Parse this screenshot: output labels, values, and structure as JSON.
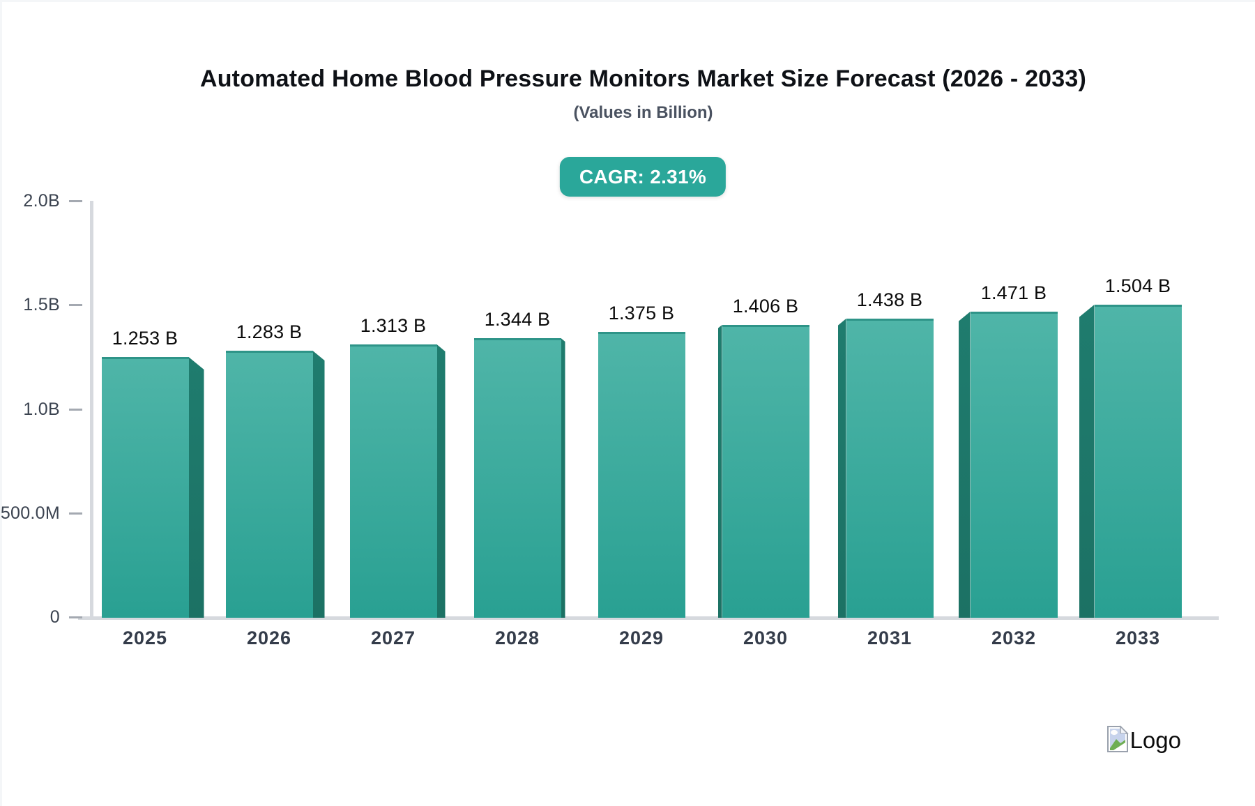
{
  "page": {
    "edge_color": "#f4f6f8",
    "background": "#ffffff"
  },
  "header": {
    "title": "Automated Home Blood Pressure Monitors Market Size Forecast (2026 - 2033)",
    "subtitle": "(Values in Billion)"
  },
  "badge": {
    "label": "CAGR: 2.31%"
  },
  "footer": {
    "logo_alt": "Logo"
  },
  "chart_data": {
    "type": "bar",
    "bar_style": "3d",
    "title": "Automated Home Blood Pressure Monitors Market Size Forecast (2026 - 2033)",
    "subtitle": "(Values in Billion)",
    "cagr_pct": 2.31,
    "categories": [
      "2025",
      "2026",
      "2027",
      "2028",
      "2029",
      "2030",
      "2031",
      "2032",
      "2033"
    ],
    "values": [
      1.253,
      1.283,
      1.313,
      1.344,
      1.375,
      1.406,
      1.438,
      1.471,
      1.504
    ],
    "value_labels": [
      "1.253 B",
      "1.283 B",
      "1.313 B",
      "1.344 B",
      "1.375 B",
      "1.406 B",
      "1.438 B",
      "1.471 B",
      "1.504 B"
    ],
    "values_in": "Billion",
    "xlabel": "",
    "ylabel": "",
    "y_ticks": [
      "2.0B",
      "1.5B",
      "1.0B",
      "500.0M",
      "0"
    ],
    "y_tick_values": [
      2.0,
      1.5,
      1.0,
      0.5,
      0
    ],
    "ylim": [
      0,
      2.0
    ],
    "grid": false,
    "legend": false,
    "colors": {
      "edge": "#f4f6f8",
      "title": "#0e1116",
      "subtitle": "#4a5260",
      "badge_bg": "#2aa79a",
      "badge_text": "#ffffff",
      "axis_line": "#d6d9de",
      "tick_dash": "#a4a9b1",
      "y_label": "#3b4350",
      "x_label": "#343c4a",
      "value_label": "#0b0b0b",
      "bar_top": "#4fb5a8",
      "bar_bottom": "#29a092",
      "bar_edge": "#2e9488",
      "bar_side": "#1f7c6e",
      "bar_side_dark": "#1c7164"
    }
  }
}
